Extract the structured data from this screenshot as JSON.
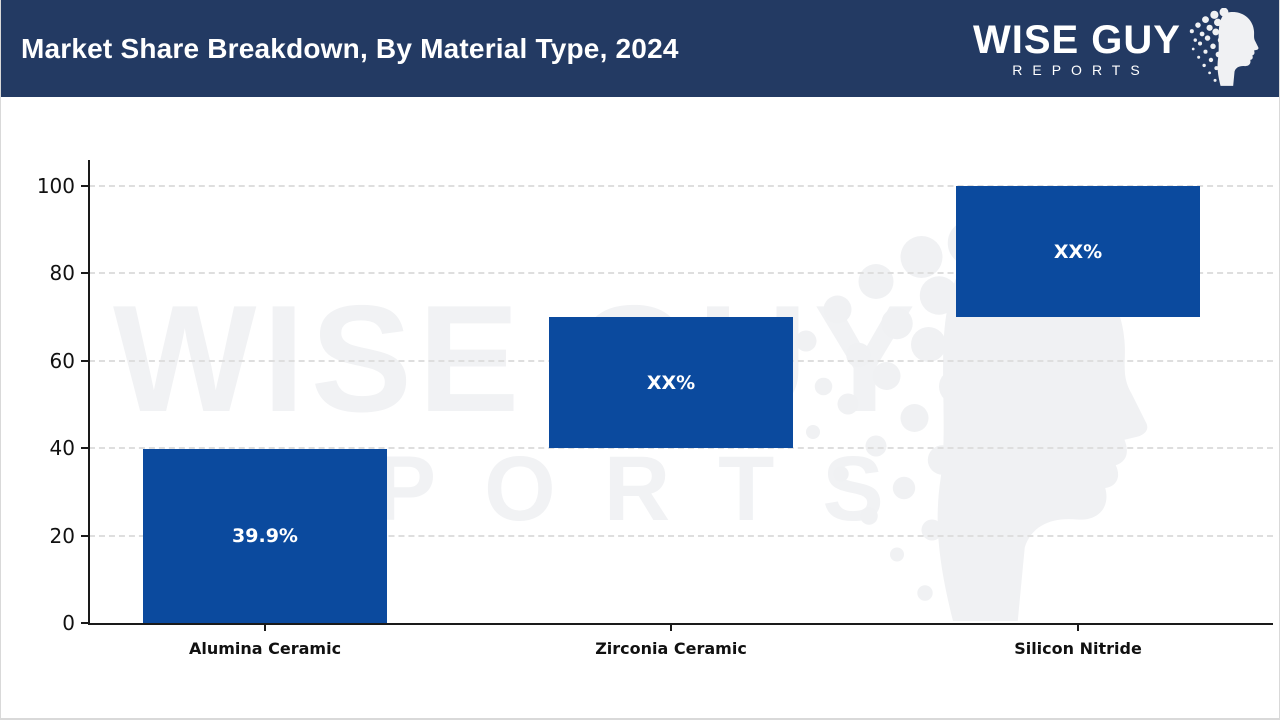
{
  "header": {
    "title": "Market Share Breakdown, By Material Type, 2024",
    "logo": {
      "line1": "WISE GUY",
      "line2": "REPORTS"
    }
  },
  "watermark": {
    "line1": "WISE GUY",
    "line2": "REPORTS"
  },
  "colors": {
    "header_bg": "#233a63",
    "title_text": "#ffffff",
    "bar": "#0b4a9e",
    "bar_label_text": "#ffffff",
    "axis": "#1a1a1a",
    "grid": "#dedede",
    "tick_text": "#111111",
    "watermark": "#f1f2f4"
  },
  "chart_data": {
    "type": "bar",
    "subtype": "floating-segment (waterfall-style market share)",
    "title": "Market Share Breakdown, By Material Type, 2024",
    "categories": [
      "Alumina Ceramic",
      "Zirconia Ceramic",
      "Silicon Nitride"
    ],
    "segments": [
      {
        "category": "Alumina Ceramic",
        "start": 0,
        "end": 39.9,
        "label": "39.9%"
      },
      {
        "category": "Zirconia Ceramic",
        "start": 40,
        "end": 70,
        "label": "XX%"
      },
      {
        "category": "Silicon Nitride",
        "start": 70,
        "end": 100,
        "label": "XX%"
      }
    ],
    "values": [
      39.9,
      30,
      30
    ],
    "xlabel": "",
    "ylabel": "",
    "ylim": [
      0,
      105
    ],
    "yticks": [
      0,
      20,
      40,
      60,
      80,
      100
    ],
    "grid": "horizontal dashed",
    "legend": false
  }
}
